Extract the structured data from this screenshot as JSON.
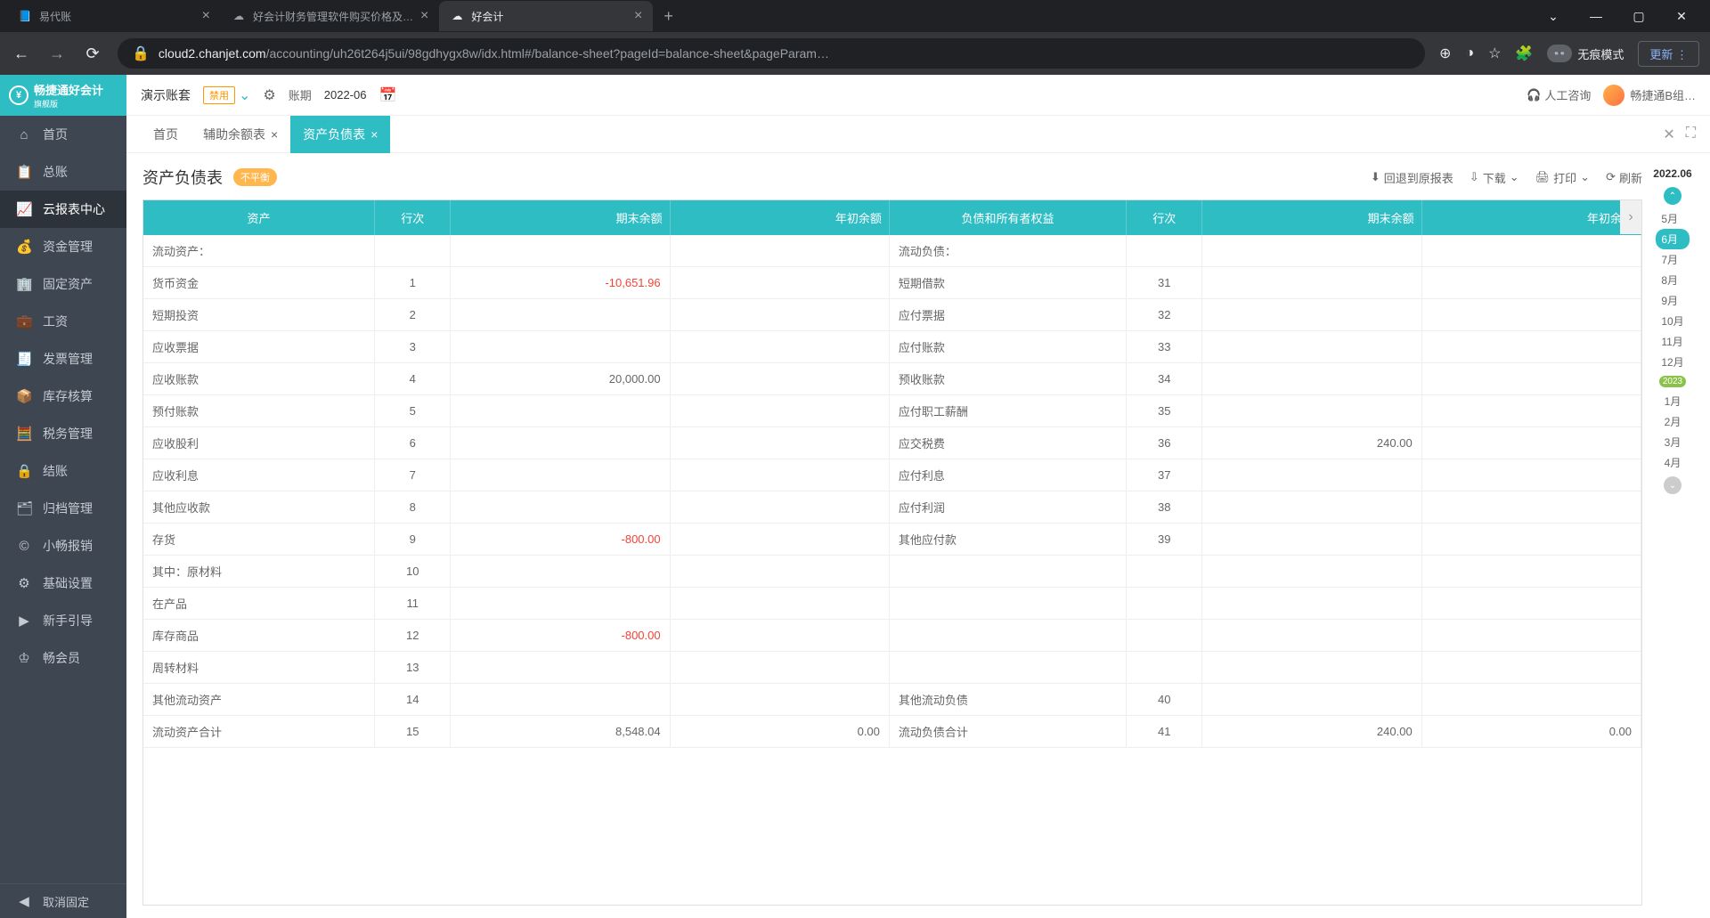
{
  "browser": {
    "tabs": [
      {
        "title": "易代账",
        "favicon": "📘"
      },
      {
        "title": "好会计财务管理软件购买价格及…",
        "favicon": "☁"
      },
      {
        "title": "好会计",
        "favicon": "☁",
        "active": true
      }
    ],
    "url_prefix": "cloud2.chanjet.com",
    "url_path": "/accounting/uh26t264j5ui/98gdhygx8w/idx.html#/balance-sheet?pageId=balance-sheet&pageParam…",
    "incognito_label": "无痕模式",
    "update_label": "更新"
  },
  "sidebar": {
    "logo": "畅捷通好会计",
    "logo_sub": "旗舰版",
    "items": [
      {
        "icon": "⌂",
        "label": "首页"
      },
      {
        "icon": "📋",
        "label": "总账"
      },
      {
        "icon": "📈",
        "label": "云报表中心",
        "active": true
      },
      {
        "icon": "💰",
        "label": "资金管理"
      },
      {
        "icon": "🏢",
        "label": "固定资产"
      },
      {
        "icon": "💼",
        "label": "工资"
      },
      {
        "icon": "🧾",
        "label": "发票管理"
      },
      {
        "icon": "📦",
        "label": "库存核算"
      },
      {
        "icon": "🧮",
        "label": "税务管理"
      },
      {
        "icon": "🔒",
        "label": "结账"
      },
      {
        "icon": "🗂",
        "label": "归档管理"
      },
      {
        "icon": "©",
        "label": "小畅报销"
      },
      {
        "icon": "⚙",
        "label": "基础设置"
      },
      {
        "icon": "▶",
        "label": "新手引导"
      },
      {
        "icon": "♔",
        "label": "畅会员"
      }
    ],
    "footer": {
      "icon": "◀",
      "label": "取消固定"
    }
  },
  "topbar": {
    "account": "演示账套",
    "disable_tag": "禁用",
    "period_label": "账期",
    "period_value": "2022-06",
    "support": "人工咨询",
    "user": "畅捷通B组…"
  },
  "page_tabs": [
    {
      "label": "首页"
    },
    {
      "label": "辅助余额表",
      "closable": true
    },
    {
      "label": "资产负债表",
      "closable": true,
      "active": true
    }
  ],
  "page": {
    "title": "资产负债表",
    "unbalanced": "不平衡",
    "toolbar": {
      "rollback": "回退到原报表",
      "download": "下载",
      "print": "打印",
      "refresh": "刷新"
    }
  },
  "table": {
    "headers": {
      "asset": "资产",
      "line1": "行次",
      "end_bal1": "期末余额",
      "begin_bal1": "年初余额",
      "liab": "负债和所有者权益",
      "line2": "行次",
      "end_bal2": "期末余额",
      "begin_bal2": "年初余额"
    },
    "rows": [
      {
        "asset": "流动资产：",
        "line1": "",
        "end1": "",
        "begin1": "",
        "liab": "流动负债：",
        "line2": "",
        "end2": "",
        "begin2": ""
      },
      {
        "asset": "货币资金",
        "line1": "1",
        "end1": "-10,651.96",
        "end1_neg": true,
        "begin1": "",
        "liab": "短期借款",
        "line2": "31",
        "end2": "",
        "begin2": ""
      },
      {
        "asset": "短期投资",
        "line1": "2",
        "end1": "",
        "begin1": "",
        "liab": "应付票据",
        "line2": "32",
        "end2": "",
        "begin2": ""
      },
      {
        "asset": "应收票据",
        "line1": "3",
        "end1": "",
        "begin1": "",
        "liab": "应付账款",
        "line2": "33",
        "end2": "",
        "begin2": ""
      },
      {
        "asset": "应收账款",
        "line1": "4",
        "end1": "20,000.00",
        "begin1": "",
        "liab": "预收账款",
        "line2": "34",
        "end2": "",
        "begin2": ""
      },
      {
        "asset": "预付账款",
        "line1": "5",
        "end1": "",
        "begin1": "",
        "liab": "应付职工薪酬",
        "line2": "35",
        "end2": "",
        "begin2": ""
      },
      {
        "asset": "应收股利",
        "line1": "6",
        "end1": "",
        "begin1": "",
        "liab": "应交税费",
        "line2": "36",
        "end2": "240.00",
        "begin2": ""
      },
      {
        "asset": "应收利息",
        "line1": "7",
        "end1": "",
        "begin1": "",
        "liab": "应付利息",
        "line2": "37",
        "end2": "",
        "begin2": ""
      },
      {
        "asset": "其他应收款",
        "line1": "8",
        "end1": "",
        "begin1": "",
        "liab": "应付利润",
        "line2": "38",
        "end2": "",
        "begin2": ""
      },
      {
        "asset": "存货",
        "line1": "9",
        "end1": "-800.00",
        "end1_neg": true,
        "begin1": "",
        "liab": "其他应付款",
        "line2": "39",
        "end2": "",
        "begin2": ""
      },
      {
        "asset": "其中：原材料",
        "line1": "10",
        "end1": "",
        "begin1": "",
        "liab": "",
        "line2": "",
        "end2": "",
        "begin2": ""
      },
      {
        "asset": "在产品",
        "line1": "11",
        "end1": "",
        "begin1": "",
        "liab": "",
        "line2": "",
        "end2": "",
        "begin2": ""
      },
      {
        "asset": "库存商品",
        "line1": "12",
        "end1": "-800.00",
        "end1_neg": true,
        "begin1": "",
        "liab": "",
        "line2": "",
        "end2": "",
        "begin2": ""
      },
      {
        "asset": "周转材料",
        "line1": "13",
        "end1": "",
        "begin1": "",
        "liab": "",
        "line2": "",
        "end2": "",
        "begin2": ""
      },
      {
        "asset": "其他流动资产",
        "line1": "14",
        "end1": "",
        "begin1": "",
        "liab": "其他流动负债",
        "line2": "40",
        "end2": "",
        "begin2": ""
      },
      {
        "asset": "流动资产合计",
        "line1": "15",
        "end1": "8,548.04",
        "begin1": "0.00",
        "liab": "流动负债合计",
        "line2": "41",
        "end2": "240.00",
        "begin2": "0.00"
      }
    ]
  },
  "month_rail": {
    "year": "2022.06",
    "months": [
      "5月",
      "6月",
      "7月",
      "8月",
      "9月",
      "10月",
      "11月",
      "12月"
    ],
    "active_month": "6月",
    "next_year": "2023",
    "next_months": [
      "1月",
      "2月",
      "3月",
      "4月"
    ]
  }
}
